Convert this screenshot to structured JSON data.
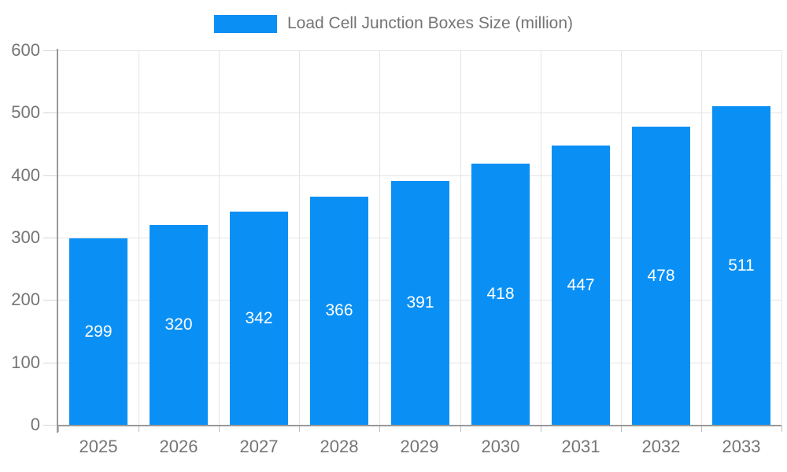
{
  "legend": {
    "label": "Load Cell Junction Boxes Size (million)"
  },
  "colors": {
    "bar": "#0a90f5",
    "grid": "#e5e5e5",
    "y_tick": "#d6d6d6",
    "x_tick": "#bdbdbd",
    "axis": "#999999",
    "text": "#757575",
    "value_label": "#ffffff",
    "background": "#ffffff"
  },
  "chart_data": {
    "type": "bar",
    "title": "Load Cell Junction Boxes Size (million)",
    "categories": [
      "2025",
      "2026",
      "2027",
      "2028",
      "2029",
      "2030",
      "2031",
      "2032",
      "2033"
    ],
    "values": [
      299,
      320,
      342,
      366,
      391,
      418,
      447,
      478,
      511
    ],
    "xlabel": "",
    "ylabel": "",
    "ylim": [
      0,
      600
    ],
    "ytick_interval": 100,
    "ytick_labels": [
      "0",
      "100",
      "200",
      "300",
      "400",
      "500",
      "600"
    ],
    "grid": "on",
    "legend_position": "top",
    "bar_labels": "inside-center"
  }
}
